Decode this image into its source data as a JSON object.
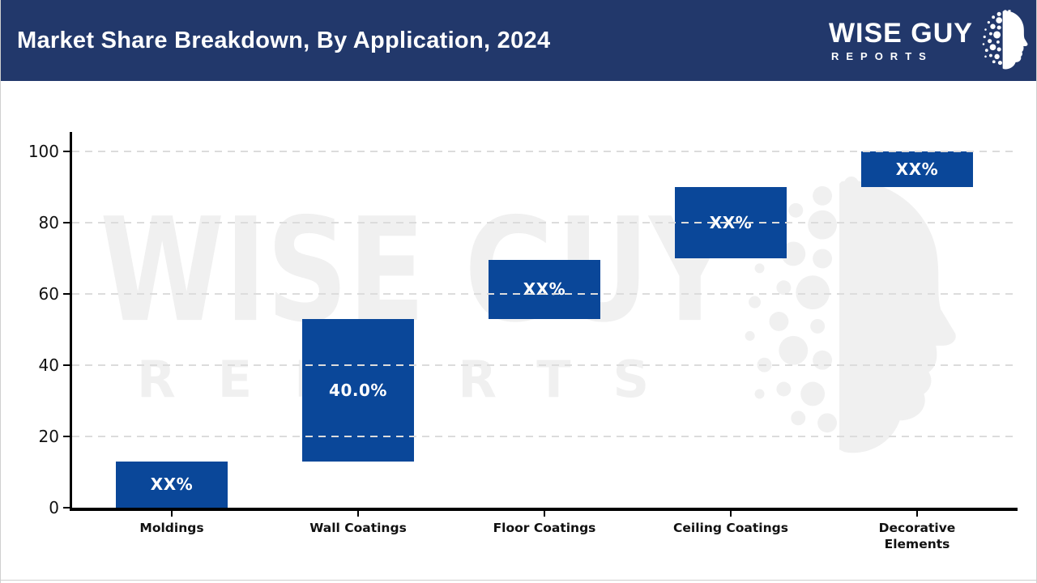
{
  "header": {
    "title": "Market Share Breakdown, By Application, 2024",
    "bg_color": "#22386b",
    "logo": {
      "wordmark": "WISE GUY",
      "subtitle": "REPORTS"
    }
  },
  "watermark": {
    "wordmark": "WISE GUY",
    "subtitle": "REPORTS"
  },
  "chart_data": {
    "type": "bar",
    "subtype": "waterfall",
    "title": "Market Share Breakdown, By Application, 2024",
    "categories": [
      "Moldings",
      "Wall Coatings",
      "Floor Coatings",
      "Ceiling Coatings",
      "Decorative Elements"
    ],
    "category_labels": [
      "Moldings",
      "Wall Coatings",
      "Floor Coatings",
      "Ceiling Coatings",
      "Decorative\nElements"
    ],
    "series": [
      {
        "name": "Market share (%)",
        "starts": [
          0,
          13,
          53,
          70,
          90
        ],
        "ends": [
          13,
          53,
          69.5,
          90,
          100
        ]
      }
    ],
    "bar_labels": [
      "XX%",
      "40.0%",
      "XX%",
      "XX%",
      "XX%"
    ],
    "xlabel": "",
    "ylabel": "",
    "yticks": [
      0,
      20,
      40,
      60,
      80,
      100
    ],
    "ylim": [
      0,
      105
    ],
    "grid": "horizontal-dashed",
    "legend": "none",
    "colors": {
      "bar": "#0a4799",
      "bar_label": "#ffffff",
      "grid": "#dcdcdc",
      "axis": "#000000",
      "tick_label": "#111111",
      "watermark": "#f0f0f0"
    }
  }
}
